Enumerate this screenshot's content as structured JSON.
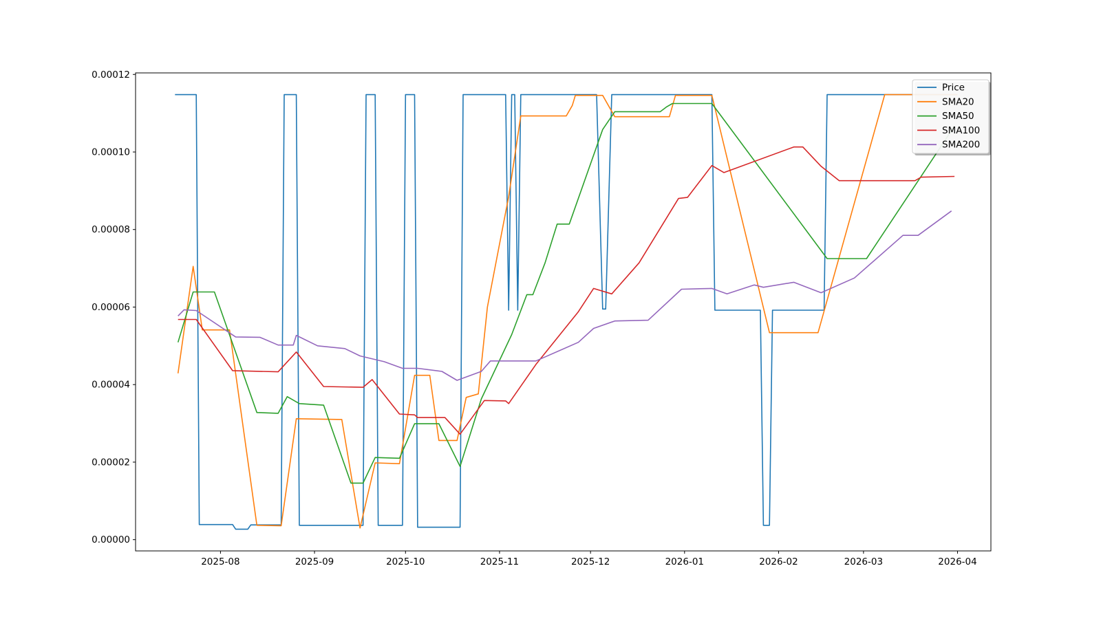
{
  "figure": {
    "background": "#ffffff",
    "plot_background": "#ffffff",
    "spine_color": "#000000"
  },
  "chart_data": {
    "type": "line",
    "title": "",
    "xlabel": "",
    "ylabel": "",
    "grid": false,
    "xlim": [
      "2025-07-04",
      "2026-04-12"
    ],
    "ylim": [
      -2.9e-06,
      0.0001204
    ],
    "x_axis": {
      "ticks": [
        {
          "date": "2025-08-01",
          "label": "2025-08"
        },
        {
          "date": "2025-09-01",
          "label": "2025-09"
        },
        {
          "date": "2025-10-01",
          "label": "2025-10"
        },
        {
          "date": "2025-11-01",
          "label": "2025-11"
        },
        {
          "date": "2025-12-01",
          "label": "2025-12"
        },
        {
          "date": "2026-01-01",
          "label": "2026-01"
        },
        {
          "date": "2026-02-01",
          "label": "2026-02"
        },
        {
          "date": "2026-03-01",
          "label": "2026-03"
        },
        {
          "date": "2026-04-01",
          "label": "2026-04"
        }
      ]
    },
    "y_axis": {
      "ticks": [
        {
          "value": 0.0,
          "label": "0.00000"
        },
        {
          "value": 2e-05,
          "label": "0.00002"
        },
        {
          "value": 4e-05,
          "label": "0.00004"
        },
        {
          "value": 6e-05,
          "label": "0.00006"
        },
        {
          "value": 8e-05,
          "label": "0.00008"
        },
        {
          "value": 0.0001,
          "label": "0.00010"
        },
        {
          "value": 0.00012,
          "label": "0.00012"
        }
      ]
    },
    "legend": {
      "position": "upper-right",
      "entries": [
        "Price",
        "SMA20",
        "SMA50",
        "SMA100",
        "SMA200"
      ]
    },
    "series": [
      {
        "name": "Price",
        "color": "#1f77b4",
        "points": [
          [
            "2025-07-17",
            0.0001148
          ],
          [
            "2025-07-24",
            0.0001148
          ],
          [
            "2025-07-25",
            3.9e-06
          ],
          [
            "2025-08-05",
            3.9e-06
          ],
          [
            "2025-08-06",
            2.7e-06
          ],
          [
            "2025-08-10",
            2.7e-06
          ],
          [
            "2025-08-11",
            3.8e-06
          ],
          [
            "2025-08-21",
            3.8e-06
          ],
          [
            "2025-08-22",
            0.0001148
          ],
          [
            "2025-08-26",
            0.0001148
          ],
          [
            "2025-08-27",
            3.7e-06
          ],
          [
            "2025-09-17",
            3.7e-06
          ],
          [
            "2025-09-18",
            0.0001148
          ],
          [
            "2025-09-21",
            0.0001148
          ],
          [
            "2025-09-22",
            3.7e-06
          ],
          [
            "2025-09-30",
            3.7e-06
          ],
          [
            "2025-10-01",
            0.0001148
          ],
          [
            "2025-10-04",
            0.0001148
          ],
          [
            "2025-10-05",
            3.2e-06
          ],
          [
            "2025-10-19",
            3.2e-06
          ],
          [
            "2025-10-20",
            0.0001148
          ],
          [
            "2025-11-03",
            0.0001148
          ],
          [
            "2025-11-04",
            5.92e-05
          ],
          [
            "2025-11-05",
            0.0001148
          ],
          [
            "2025-11-06",
            0.0001148
          ],
          [
            "2025-11-07",
            5.92e-05
          ],
          [
            "2025-11-08",
            0.0001148
          ],
          [
            "2025-12-03",
            0.0001148
          ],
          [
            "2025-12-05",
            5.95e-05
          ],
          [
            "2025-12-06",
            5.95e-05
          ],
          [
            "2025-12-08",
            0.0001148
          ],
          [
            "2026-01-10",
            0.0001148
          ],
          [
            "2026-01-11",
            5.92e-05
          ],
          [
            "2026-01-26",
            5.92e-05
          ],
          [
            "2026-01-27",
            3.7e-06
          ],
          [
            "2026-01-29",
            3.7e-06
          ],
          [
            "2026-01-30",
            5.92e-05
          ],
          [
            "2026-02-16",
            5.92e-05
          ],
          [
            "2026-02-17",
            0.0001148
          ],
          [
            "2026-04-01",
            0.0001148
          ]
        ]
      },
      {
        "name": "SMA20",
        "color": "#ff7f0e",
        "points": [
          [
            "2025-07-18",
            4.29e-05
          ],
          [
            "2025-07-23",
            7.05e-05
          ],
          [
            "2025-07-26",
            5.41e-05
          ],
          [
            "2025-08-04",
            5.41e-05
          ],
          [
            "2025-08-13",
            3.7e-06
          ],
          [
            "2025-08-21",
            3.6e-06
          ],
          [
            "2025-08-26",
            3.12e-05
          ],
          [
            "2025-09-10",
            3.1e-05
          ],
          [
            "2025-09-16",
            3e-06
          ],
          [
            "2025-09-21",
            1.98e-05
          ],
          [
            "2025-09-29",
            1.96e-05
          ],
          [
            "2025-10-04",
            4.24e-05
          ],
          [
            "2025-10-09",
            4.24e-05
          ],
          [
            "2025-10-12",
            2.56e-05
          ],
          [
            "2025-10-18",
            2.56e-05
          ],
          [
            "2025-10-21",
            3.67e-05
          ],
          [
            "2025-10-25",
            3.76e-05
          ],
          [
            "2025-10-28",
            6e-05
          ],
          [
            "2025-11-04",
            8.85e-05
          ],
          [
            "2025-11-08",
            0.0001093
          ],
          [
            "2025-11-23",
            0.0001093
          ],
          [
            "2025-11-25",
            0.000112
          ],
          [
            "2025-11-26",
            0.0001146
          ],
          [
            "2025-12-05",
            0.0001146
          ],
          [
            "2025-12-09",
            0.0001091
          ],
          [
            "2025-12-27",
            0.0001091
          ],
          [
            "2025-12-29",
            0.0001146
          ],
          [
            "2026-01-10",
            0.0001146
          ],
          [
            "2026-01-29",
            5.34e-05
          ],
          [
            "2026-02-14",
            5.34e-05
          ],
          [
            "2026-03-08",
            0.0001148
          ],
          [
            "2026-04-01",
            0.0001148
          ]
        ]
      },
      {
        "name": "SMA50",
        "color": "#2ca02c",
        "points": [
          [
            "2025-07-18",
            5.09e-05
          ],
          [
            "2025-07-23",
            6.39e-05
          ],
          [
            "2025-07-30",
            6.39e-05
          ],
          [
            "2025-08-13",
            3.28e-05
          ],
          [
            "2025-08-20",
            3.26e-05
          ],
          [
            "2025-08-23",
            3.69e-05
          ],
          [
            "2025-08-27",
            3.51e-05
          ],
          [
            "2025-09-04",
            3.47e-05
          ],
          [
            "2025-09-13",
            1.46e-05
          ],
          [
            "2025-09-17",
            1.46e-05
          ],
          [
            "2025-09-21",
            2.12e-05
          ],
          [
            "2025-09-29",
            2.1e-05
          ],
          [
            "2025-10-04",
            2.99e-05
          ],
          [
            "2025-10-12",
            2.99e-05
          ],
          [
            "2025-10-19",
            1.89e-05
          ],
          [
            "2025-10-26",
            3.63e-05
          ],
          [
            "2025-11-05",
            5.29e-05
          ],
          [
            "2025-11-10",
            6.32e-05
          ],
          [
            "2025-11-12",
            6.32e-05
          ],
          [
            "2025-11-16",
            7.14e-05
          ],
          [
            "2025-11-20",
            8.14e-05
          ],
          [
            "2025-11-24",
            8.14e-05
          ],
          [
            "2025-12-05",
            0.0001058
          ],
          [
            "2025-12-09",
            0.0001104
          ],
          [
            "2025-12-24",
            0.0001104
          ],
          [
            "2025-12-26",
            0.0001116
          ],
          [
            "2025-12-28",
            0.0001125
          ],
          [
            "2026-01-10",
            0.0001125
          ],
          [
            "2026-02-17",
            7.25e-05
          ],
          [
            "2026-03-02",
            7.25e-05
          ],
          [
            "2026-03-31",
            0.0001067
          ]
        ]
      },
      {
        "name": "SMA100",
        "color": "#d62728",
        "points": [
          [
            "2025-07-18",
            5.68e-05
          ],
          [
            "2025-07-24",
            5.68e-05
          ],
          [
            "2025-08-05",
            4.36e-05
          ],
          [
            "2025-08-20",
            4.33e-05
          ],
          [
            "2025-08-26",
            4.84e-05
          ],
          [
            "2025-09-04",
            3.95e-05
          ],
          [
            "2025-09-17",
            3.93e-05
          ],
          [
            "2025-09-20",
            4.13e-05
          ],
          [
            "2025-09-29",
            3.24e-05
          ],
          [
            "2025-10-04",
            3.22e-05
          ],
          [
            "2025-10-05",
            3.15e-05
          ],
          [
            "2025-10-14",
            3.15e-05
          ],
          [
            "2025-10-19",
            2.72e-05
          ],
          [
            "2025-10-27",
            3.59e-05
          ],
          [
            "2025-11-03",
            3.58e-05
          ],
          [
            "2025-11-04",
            3.51e-05
          ],
          [
            "2025-11-13",
            4.52e-05
          ],
          [
            "2025-11-27",
            5.88e-05
          ],
          [
            "2025-12-02",
            6.48e-05
          ],
          [
            "2025-12-08",
            6.34e-05
          ],
          [
            "2025-12-17",
            7.14e-05
          ],
          [
            "2025-12-30",
            8.8e-05
          ],
          [
            "2026-01-02",
            8.83e-05
          ],
          [
            "2026-01-10",
            9.65e-05
          ],
          [
            "2026-01-14",
            9.47e-05
          ],
          [
            "2026-02-06",
            0.0001013
          ],
          [
            "2026-02-09",
            0.0001013
          ],
          [
            "2026-02-15",
            9.63e-05
          ],
          [
            "2026-02-21",
            9.26e-05
          ],
          [
            "2026-03-18",
            9.26e-05
          ],
          [
            "2026-03-20",
            9.35e-05
          ],
          [
            "2026-03-31",
            9.37e-05
          ]
        ]
      },
      {
        "name": "SMA200",
        "color": "#9467bd",
        "points": [
          [
            "2025-07-18",
            5.77e-05
          ],
          [
            "2025-07-20",
            5.93e-05
          ],
          [
            "2025-07-24",
            5.91e-05
          ],
          [
            "2025-08-06",
            5.23e-05
          ],
          [
            "2025-08-14",
            5.22e-05
          ],
          [
            "2025-08-20",
            5.02e-05
          ],
          [
            "2025-08-25",
            5.02e-05
          ],
          [
            "2025-08-26",
            5.27e-05
          ],
          [
            "2025-09-02",
            5e-05
          ],
          [
            "2025-09-11",
            4.93e-05
          ],
          [
            "2025-09-16",
            4.74e-05
          ],
          [
            "2025-09-24",
            4.59e-05
          ],
          [
            "2025-09-30",
            4.42e-05
          ],
          [
            "2025-10-05",
            4.42e-05
          ],
          [
            "2025-10-13",
            4.34e-05
          ],
          [
            "2025-10-18",
            4.11e-05
          ],
          [
            "2025-10-26",
            4.34e-05
          ],
          [
            "2025-10-29",
            4.61e-05
          ],
          [
            "2025-11-13",
            4.61e-05
          ],
          [
            "2025-11-27",
            5.09e-05
          ],
          [
            "2025-12-02",
            5.45e-05
          ],
          [
            "2025-12-09",
            5.64e-05
          ],
          [
            "2025-12-20",
            5.66e-05
          ],
          [
            "2025-12-31",
            6.46e-05
          ],
          [
            "2026-01-10",
            6.48e-05
          ],
          [
            "2026-01-15",
            6.34e-05
          ],
          [
            "2026-01-24",
            6.57e-05
          ],
          [
            "2026-01-27",
            6.51e-05
          ],
          [
            "2026-02-06",
            6.64e-05
          ],
          [
            "2026-02-15",
            6.37e-05
          ],
          [
            "2026-02-26",
            6.75e-05
          ],
          [
            "2026-03-14",
            7.85e-05
          ],
          [
            "2026-03-19",
            7.85e-05
          ],
          [
            "2026-03-30",
            8.48e-05
          ]
        ]
      }
    ]
  }
}
